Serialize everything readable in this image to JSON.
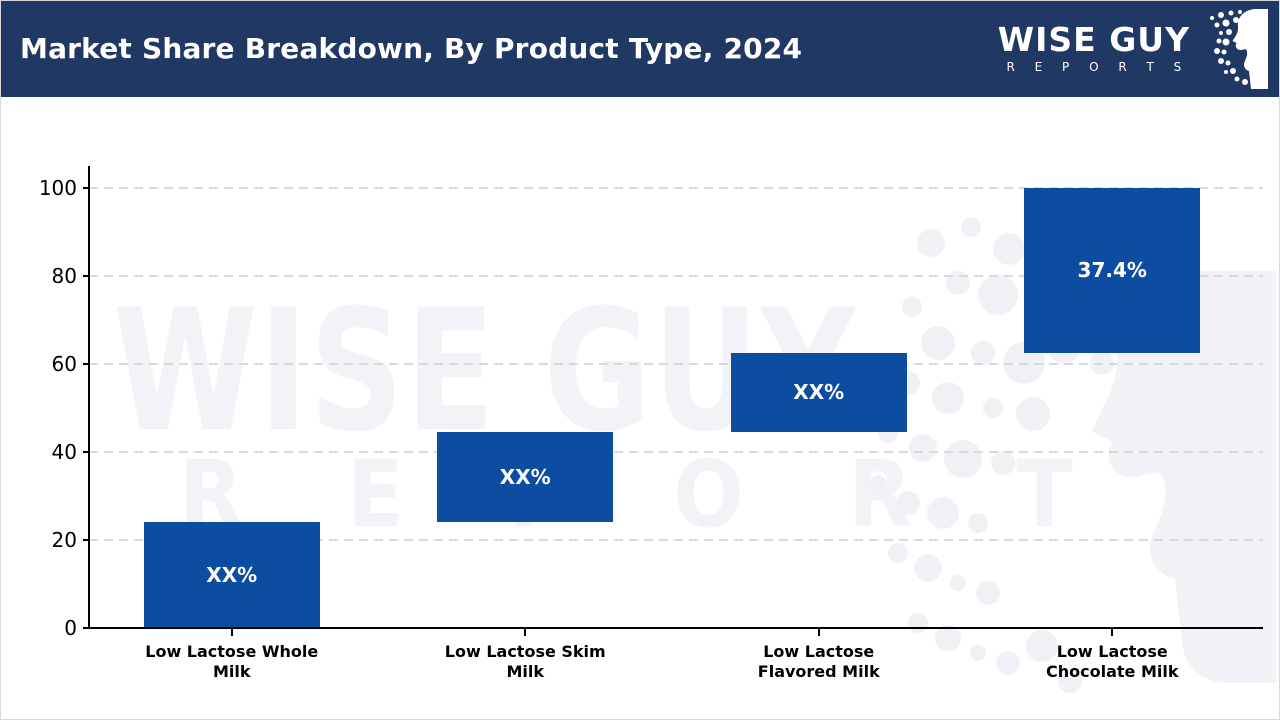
{
  "header": {
    "title": "Market Share Breakdown, By Product Type, 2024",
    "bg_color": "#1f3864",
    "logo": {
      "line1": "WISE GUY",
      "line2": "R E P O R T S"
    }
  },
  "watermark": {
    "line1": "WISE GUY",
    "line2": "R E P O R T S"
  },
  "chart_data": {
    "type": "bar",
    "subtype": "floating-segment-columns",
    "title": "Market Share Breakdown, By Product Type, 2024",
    "xlabel": "",
    "ylabel": "",
    "ylim": [
      0,
      105
    ],
    "yticks": [
      0,
      20,
      40,
      60,
      80,
      100
    ],
    "grid": "dashed-horizontal",
    "legend": "none",
    "bar_color": "#0c4da2",
    "bar_label_color": "#ffffff",
    "categories": [
      "Low Lactose Whole\nMilk",
      "Low Lactose Skim\nMilk",
      "Low Lactose\nFlavored Milk",
      "Low Lactose\nChocolate Milk"
    ],
    "segments": [
      {
        "category": "Low Lactose Whole\nMilk",
        "from": 0,
        "to": 24,
        "label": "XX%"
      },
      {
        "category": "Low Lactose Skim\nMilk",
        "from": 24,
        "to": 44.6,
        "label": "XX%"
      },
      {
        "category": "Low Lactose\nFlavored Milk",
        "from": 44.6,
        "to": 62.6,
        "label": "XX%"
      },
      {
        "category": "Low Lactose\nChocolate Milk",
        "from": 62.6,
        "to": 100,
        "label": "37.4%"
      }
    ]
  }
}
